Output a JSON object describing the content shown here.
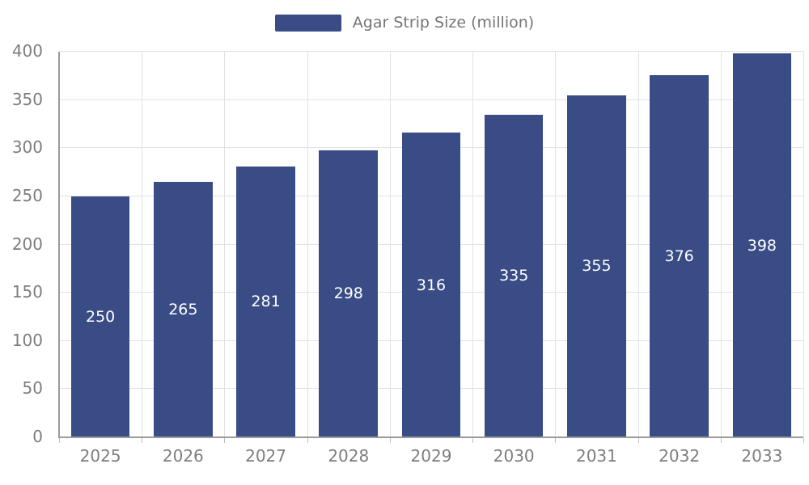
{
  "chart_data": {
    "type": "bar",
    "title": "",
    "legend": "Agar Strip Size (million)",
    "legend_position": "top-center",
    "categories": [
      "2025",
      "2026",
      "2027",
      "2028",
      "2029",
      "2030",
      "2031",
      "2032",
      "2033"
    ],
    "values": [
      250,
      265,
      281,
      298,
      316,
      335,
      355,
      376,
      398
    ],
    "xlabel": "",
    "ylabel": "",
    "ylim": [
      0,
      400
    ],
    "yticks": [
      0,
      50,
      100,
      150,
      200,
      250,
      300,
      350,
      400
    ],
    "grid": true,
    "colors": {
      "bar": "#394C85",
      "value_label": "#ffffff",
      "axis_text": "#7d7d7d",
      "legend_text": "#757575",
      "grid_line": "#e2e2e2",
      "axis_line": "#9a9a9a"
    }
  }
}
